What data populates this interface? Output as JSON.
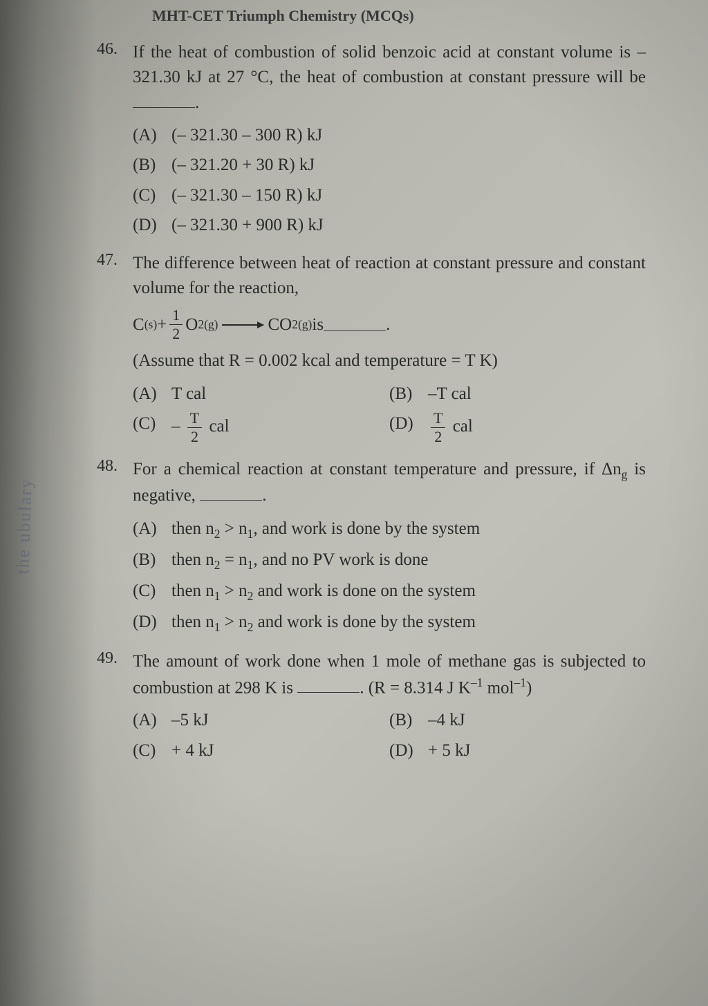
{
  "header": "MHT-CET Triumph Chemistry (MCQs)",
  "margin_scribble": "the ubulary",
  "questions": [
    {
      "num": "46.",
      "text": "If the heat of combustion of solid benzoic acid at constant volume is – 321.30 kJ at 27 °C, the heat of combustion at constant pressure will be ",
      "blank_after": true,
      "period_after_blank": ".",
      "options": [
        {
          "label": "(A)",
          "text": "(– 321.30 – 300 R) kJ"
        },
        {
          "label": "(B)",
          "text": "(– 321.20 + 30 R) kJ"
        },
        {
          "label": "(C)",
          "text": "(– 321.30 – 150 R) kJ"
        },
        {
          "label": "(D)",
          "text": "(– 321.30 + 900 R) kJ"
        }
      ]
    },
    {
      "num": "47.",
      "text": "The difference between heat of reaction at constant pressure and constant volume for the reaction,",
      "equation": {
        "lhs1": "C",
        "lhs1_sub": "(s)",
        "plus": " + ",
        "frac_num": "1",
        "frac_den": "2",
        "o2": "O",
        "o2_sub": "2(g)",
        "rhs": "CO",
        "rhs_sub": "2(g)",
        "tail": " is ",
        "period": "."
      },
      "note": "(Assume that R = 0.002 kcal and temperature = T K)",
      "options_2col": [
        [
          {
            "label": "(A)",
            "text": "T cal"
          },
          {
            "label": "(B)",
            "text": "–T cal"
          }
        ],
        [
          {
            "label": "(C)",
            "frac": {
              "pre": "– ",
              "num": "T",
              "den": "2",
              "post": " cal"
            }
          },
          {
            "label": "(D)",
            "frac": {
              "pre": "",
              "num": "T",
              "den": "2",
              "post": " cal"
            }
          }
        ]
      ]
    },
    {
      "num": "48.",
      "text_pre": "For a chemical reaction at constant temperature and pressure, if Δn",
      "text_sub": "g",
      "text_post": " is negative, ",
      "blank_after": true,
      "period_after_blank": ".",
      "options": [
        {
          "label": "(A)",
          "rich": {
            "p1": "then n",
            "s1": "2",
            "p2": " > n",
            "s2": "1",
            "p3": ", and work is done by the system"
          }
        },
        {
          "label": "(B)",
          "rich": {
            "p1": "then n",
            "s1": "2",
            "p2": " = n",
            "s2": "1",
            "p3": ", and no PV work is done"
          }
        },
        {
          "label": "(C)",
          "rich": {
            "p1": "then n",
            "s1": "1",
            "p2": " > n",
            "s2": "2",
            "p3": " and work is done on the system"
          }
        },
        {
          "label": "(D)",
          "rich": {
            "p1": "then n",
            "s1": "1",
            "p2": " > n",
            "s2": "2",
            "p3": " and work is done by the system"
          }
        }
      ]
    },
    {
      "num": "49.",
      "text": "The amount of work done when 1 mole of methane gas is subjected to combustion at 298 K is ",
      "blank_after": true,
      "tail_rich": {
        "p1": ". (R = 8.314 J K",
        "s1": "–1",
        "p2": " mol",
        "s2": "–1",
        "p3": ")"
      },
      "options_2col": [
        [
          {
            "label": "(A)",
            "text": "–5 kJ"
          },
          {
            "label": "(B)",
            "text": "–4 kJ"
          }
        ],
        [
          {
            "label": "(C)",
            "text": "+ 4 kJ"
          },
          {
            "label": "(D)",
            "text": "+ 5 kJ"
          }
        ]
      ]
    }
  ]
}
